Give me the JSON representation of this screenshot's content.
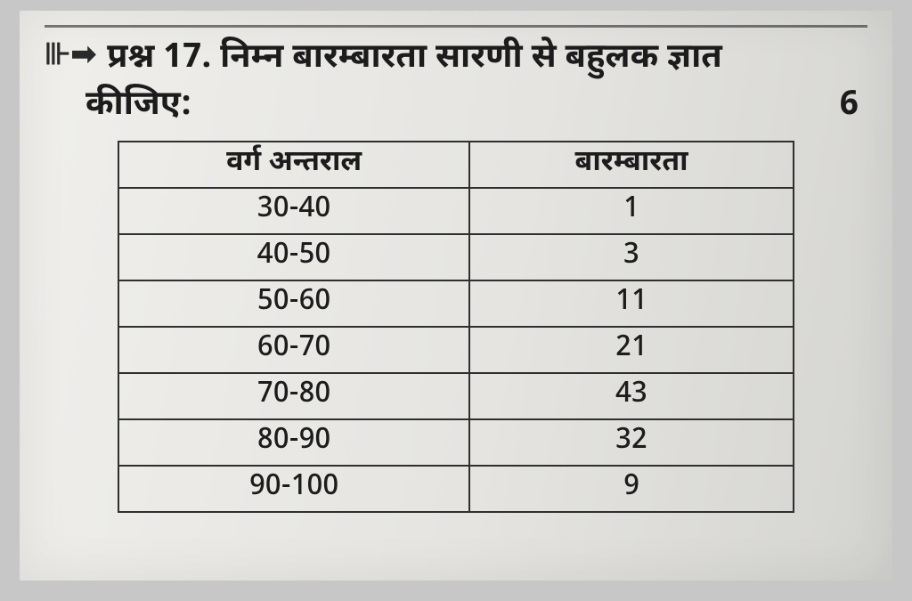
{
  "colors": {
    "background": "#c7c7c7",
    "paper": "#e9e8e6",
    "text": "#1c1c1c",
    "border": "#2f2f2f"
  },
  "question": {
    "pointer_glyph": "⊪➡",
    "line1": "प्रश्न 17. निम्न बारम्बारता सारणी से बहुलक ज्ञात",
    "line2": "कीजिए:",
    "marks": "6"
  },
  "table": {
    "type": "table",
    "columns": [
      "वर्ग अन्तराल",
      "बारम्बारता"
    ],
    "rows": [
      [
        "30-40",
        "1"
      ],
      [
        "40-50",
        "3"
      ],
      [
        "50-60",
        "11"
      ],
      [
        "60-70",
        "21"
      ],
      [
        "70-80",
        "43"
      ],
      [
        "80-90",
        "32"
      ],
      [
        "90-100",
        "9"
      ]
    ],
    "border_color": "#2f2f2f",
    "header_fontsize_pt": 24,
    "cell_fontsize_pt": 24,
    "col_widths_pct": [
      52,
      48
    ],
    "alignment": [
      "center",
      "center"
    ]
  }
}
